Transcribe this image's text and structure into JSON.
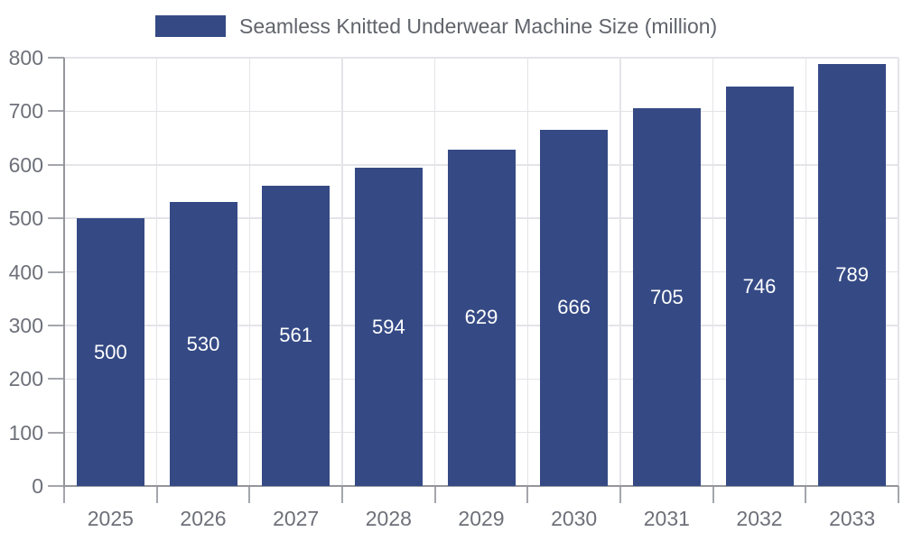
{
  "chart_data": {
    "type": "bar",
    "title": "Seamless Knitted Underwear Machine Size (million)",
    "series_name": "Seamless Knitted Underwear Machine Size (million)",
    "categories": [
      "2025",
      "2026",
      "2027",
      "2028",
      "2029",
      "2030",
      "2031",
      "2032",
      "2033"
    ],
    "values": [
      500,
      530,
      561,
      594,
      629,
      666,
      705,
      746,
      789
    ],
    "xlabel": "",
    "ylabel": "",
    "ylim": [
      0,
      800
    ],
    "ytick_interval": 100,
    "ytick_labels": [
      "0",
      "100",
      "200",
      "300",
      "400",
      "500",
      "600",
      "700",
      "800"
    ],
    "grid": true,
    "legend_position": "top",
    "bar_labels_inside": true,
    "colors": {
      "bar": "#354a85",
      "bar_label": "#ffffff",
      "axis_line": "#94969c",
      "tick": "#a4a6ac",
      "grid": "#e4e4e9",
      "axis_label": "#6e7079",
      "legend_text": "#60646b",
      "background": "#ffffff"
    }
  }
}
